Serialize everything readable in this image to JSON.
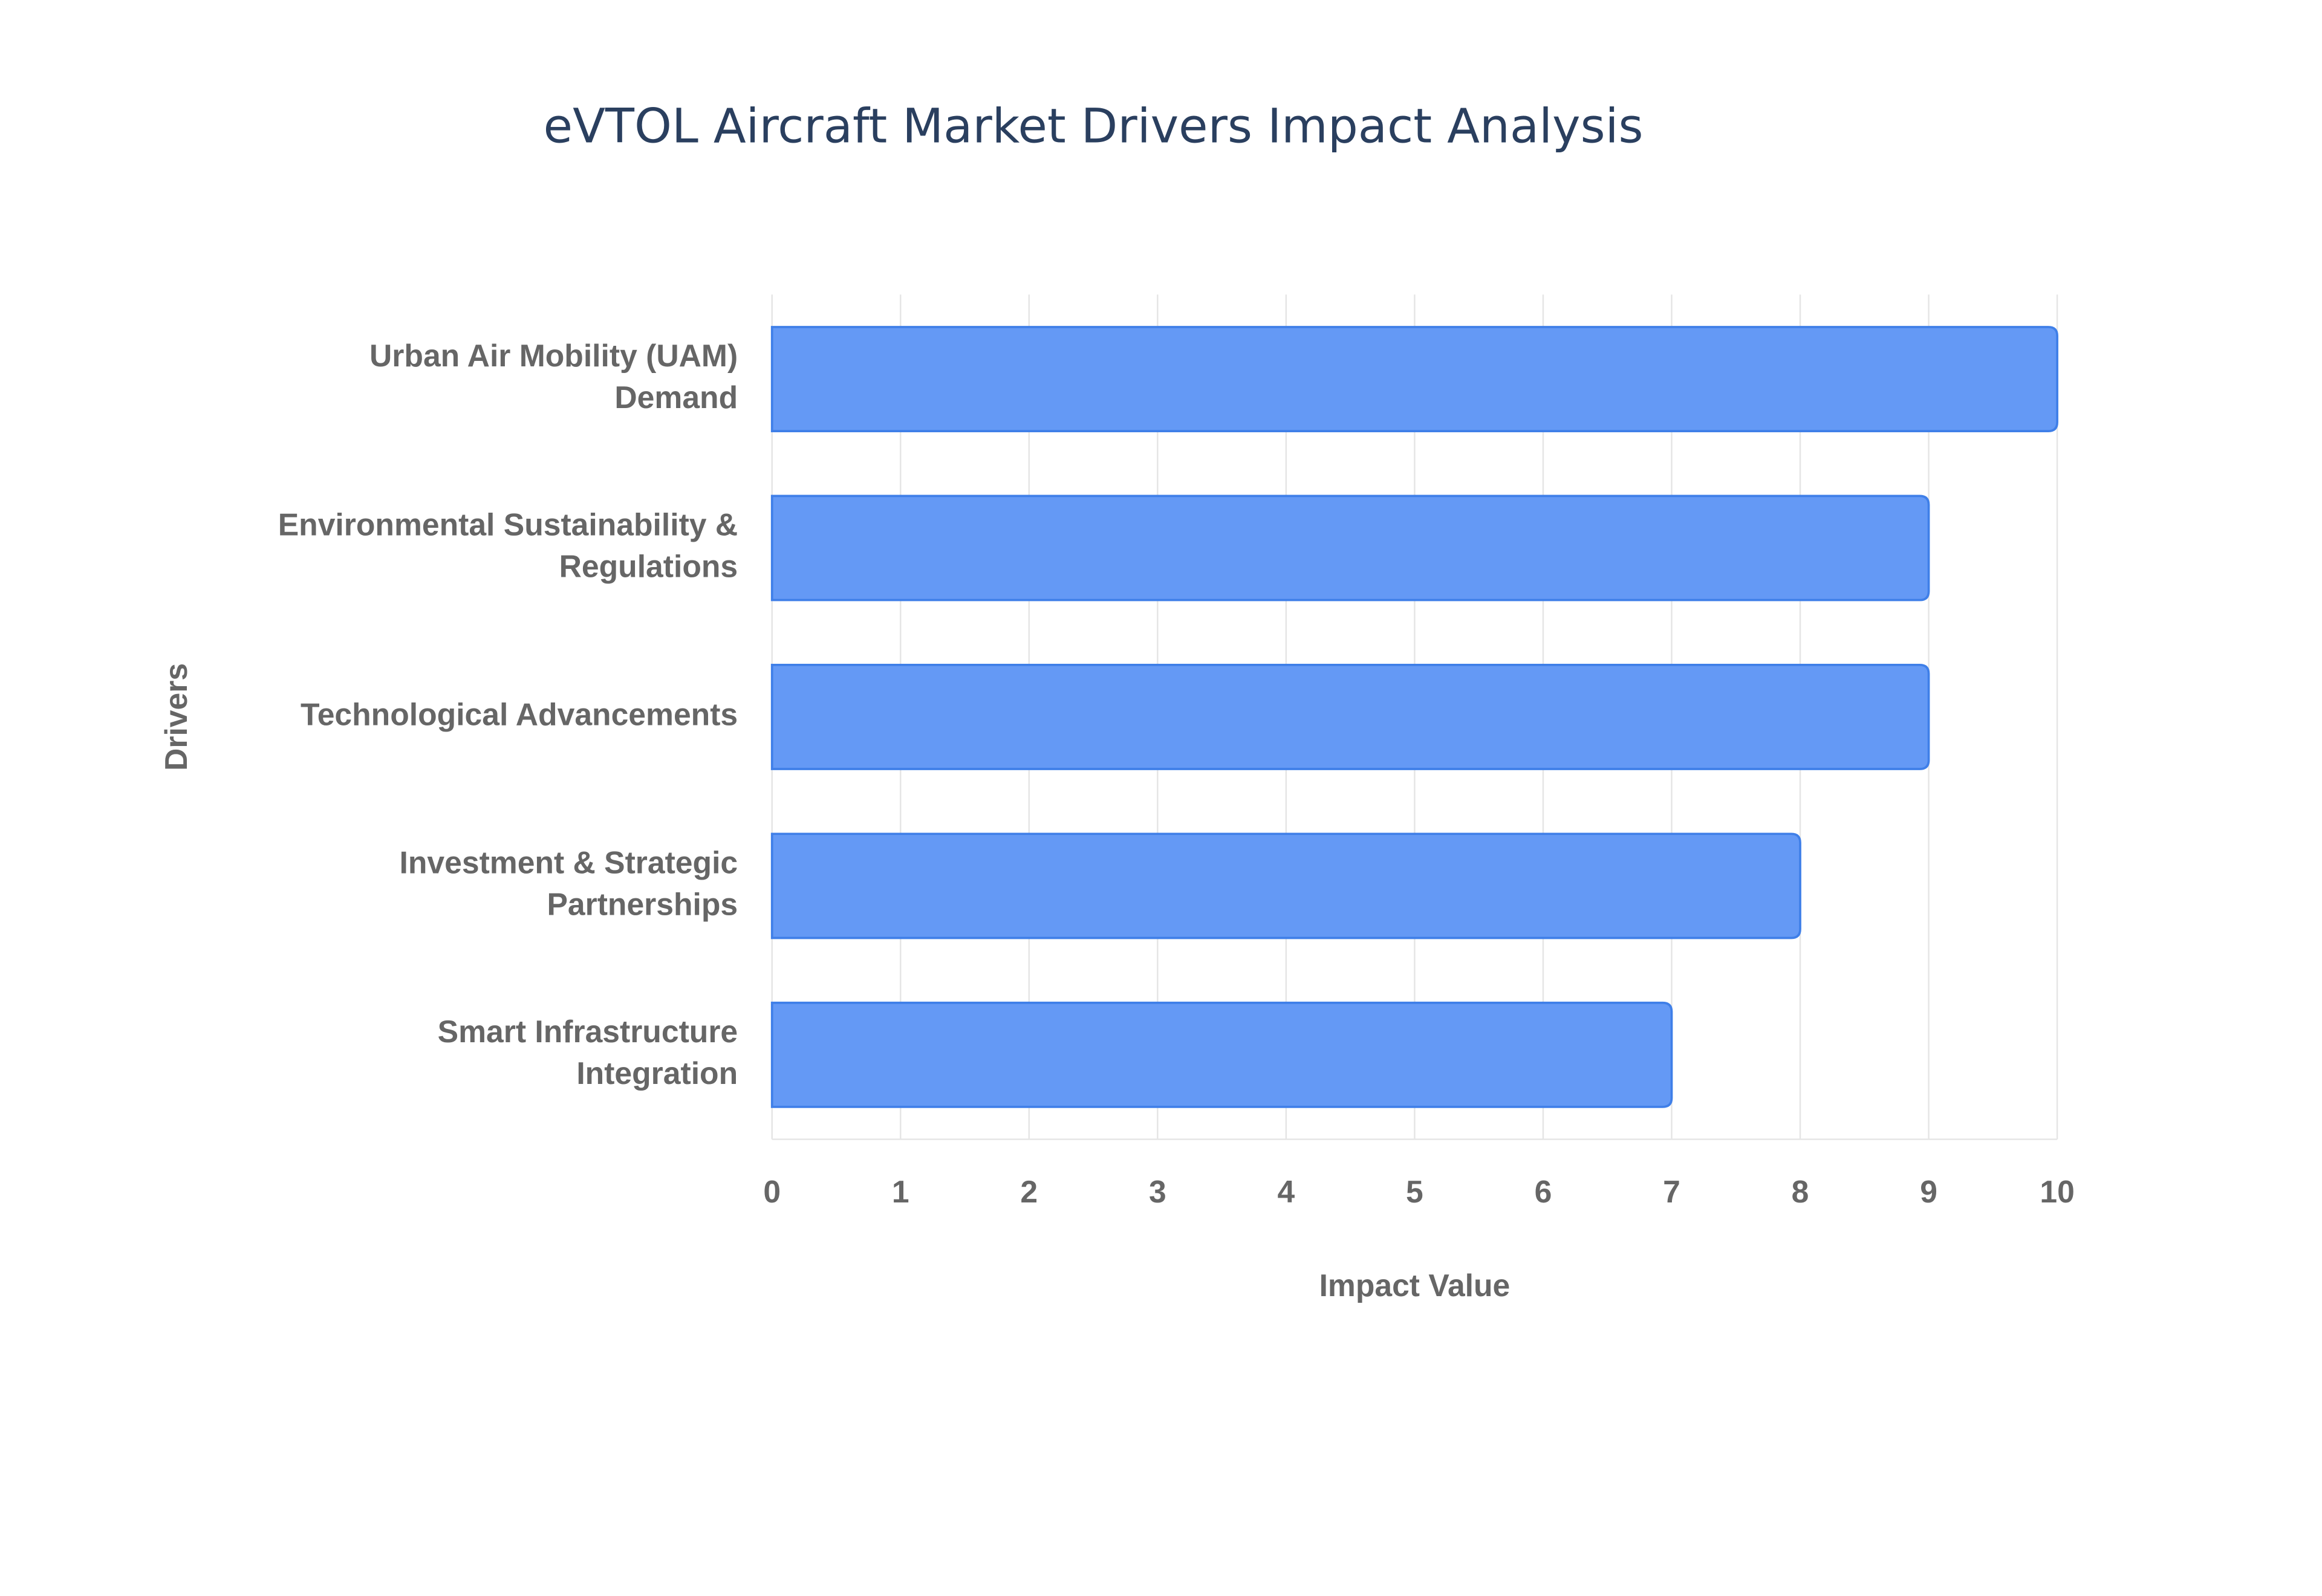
{
  "chart_data": {
    "type": "bar",
    "orientation": "horizontal",
    "title": "eVTOL Aircraft Market Drivers Impact Analysis",
    "x_label": "Impact Value",
    "y_label": "Drivers",
    "categories": [
      "Urban Air Mobility (UAM) Demand",
      "Environmental Sustainability & Regulations",
      "Technological Advancements",
      "Investment & Strategic Partnerships",
      "Smart Infrastructure Integration"
    ],
    "values": [
      10,
      9,
      9,
      8,
      7
    ],
    "color": "#6499f5",
    "xlim": [
      0,
      10
    ],
    "xticks": [
      0,
      1,
      2,
      3,
      4,
      5,
      6,
      7,
      8,
      9,
      10
    ],
    "grid": true
  }
}
